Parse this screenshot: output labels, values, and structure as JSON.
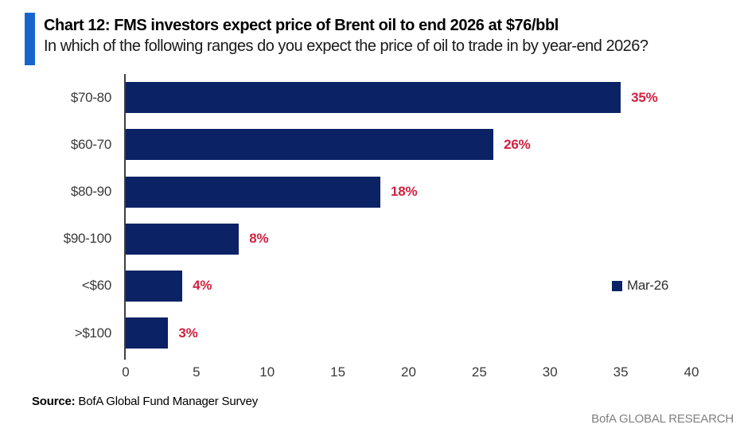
{
  "header": {
    "title": "Chart 12: FMS investors expect price of Brent oil to end 2026 at $76/bbl",
    "subtitle": "In which of the following ranges do you expect the price of oil to trade in by year-end 2026?"
  },
  "chart_data": {
    "type": "bar",
    "orientation": "horizontal",
    "title": "Chart 12: FMS investors expect price of Brent oil to end 2026 at $76/bbl",
    "subtitle": "In which of the following ranges do you expect the price of oil to trade in by year-end 2026?",
    "categories": [
      "$70-80",
      "$60-70",
      "$80-90",
      "$90-100",
      "<$60",
      ">$100"
    ],
    "series": [
      {
        "name": "Mar-26",
        "color": "#0b2265",
        "values": [
          35,
          26,
          18,
          8,
          4,
          3
        ]
      }
    ],
    "value_labels": [
      "35%",
      "26%",
      "18%",
      "8%",
      "4%",
      "3%"
    ],
    "value_label_color": "#d2203e",
    "xlim": [
      0,
      40
    ],
    "xticks": [
      0,
      5,
      10,
      15,
      20,
      25,
      30,
      35,
      40
    ],
    "grid": false,
    "legend_position": "right-middle",
    "axis_color": "#3f3f3f"
  },
  "footer": {
    "source_label": "Source:",
    "source_text": " BofA Global Fund Manager Survey",
    "research": "BofA GLOBAL RESEARCH"
  }
}
